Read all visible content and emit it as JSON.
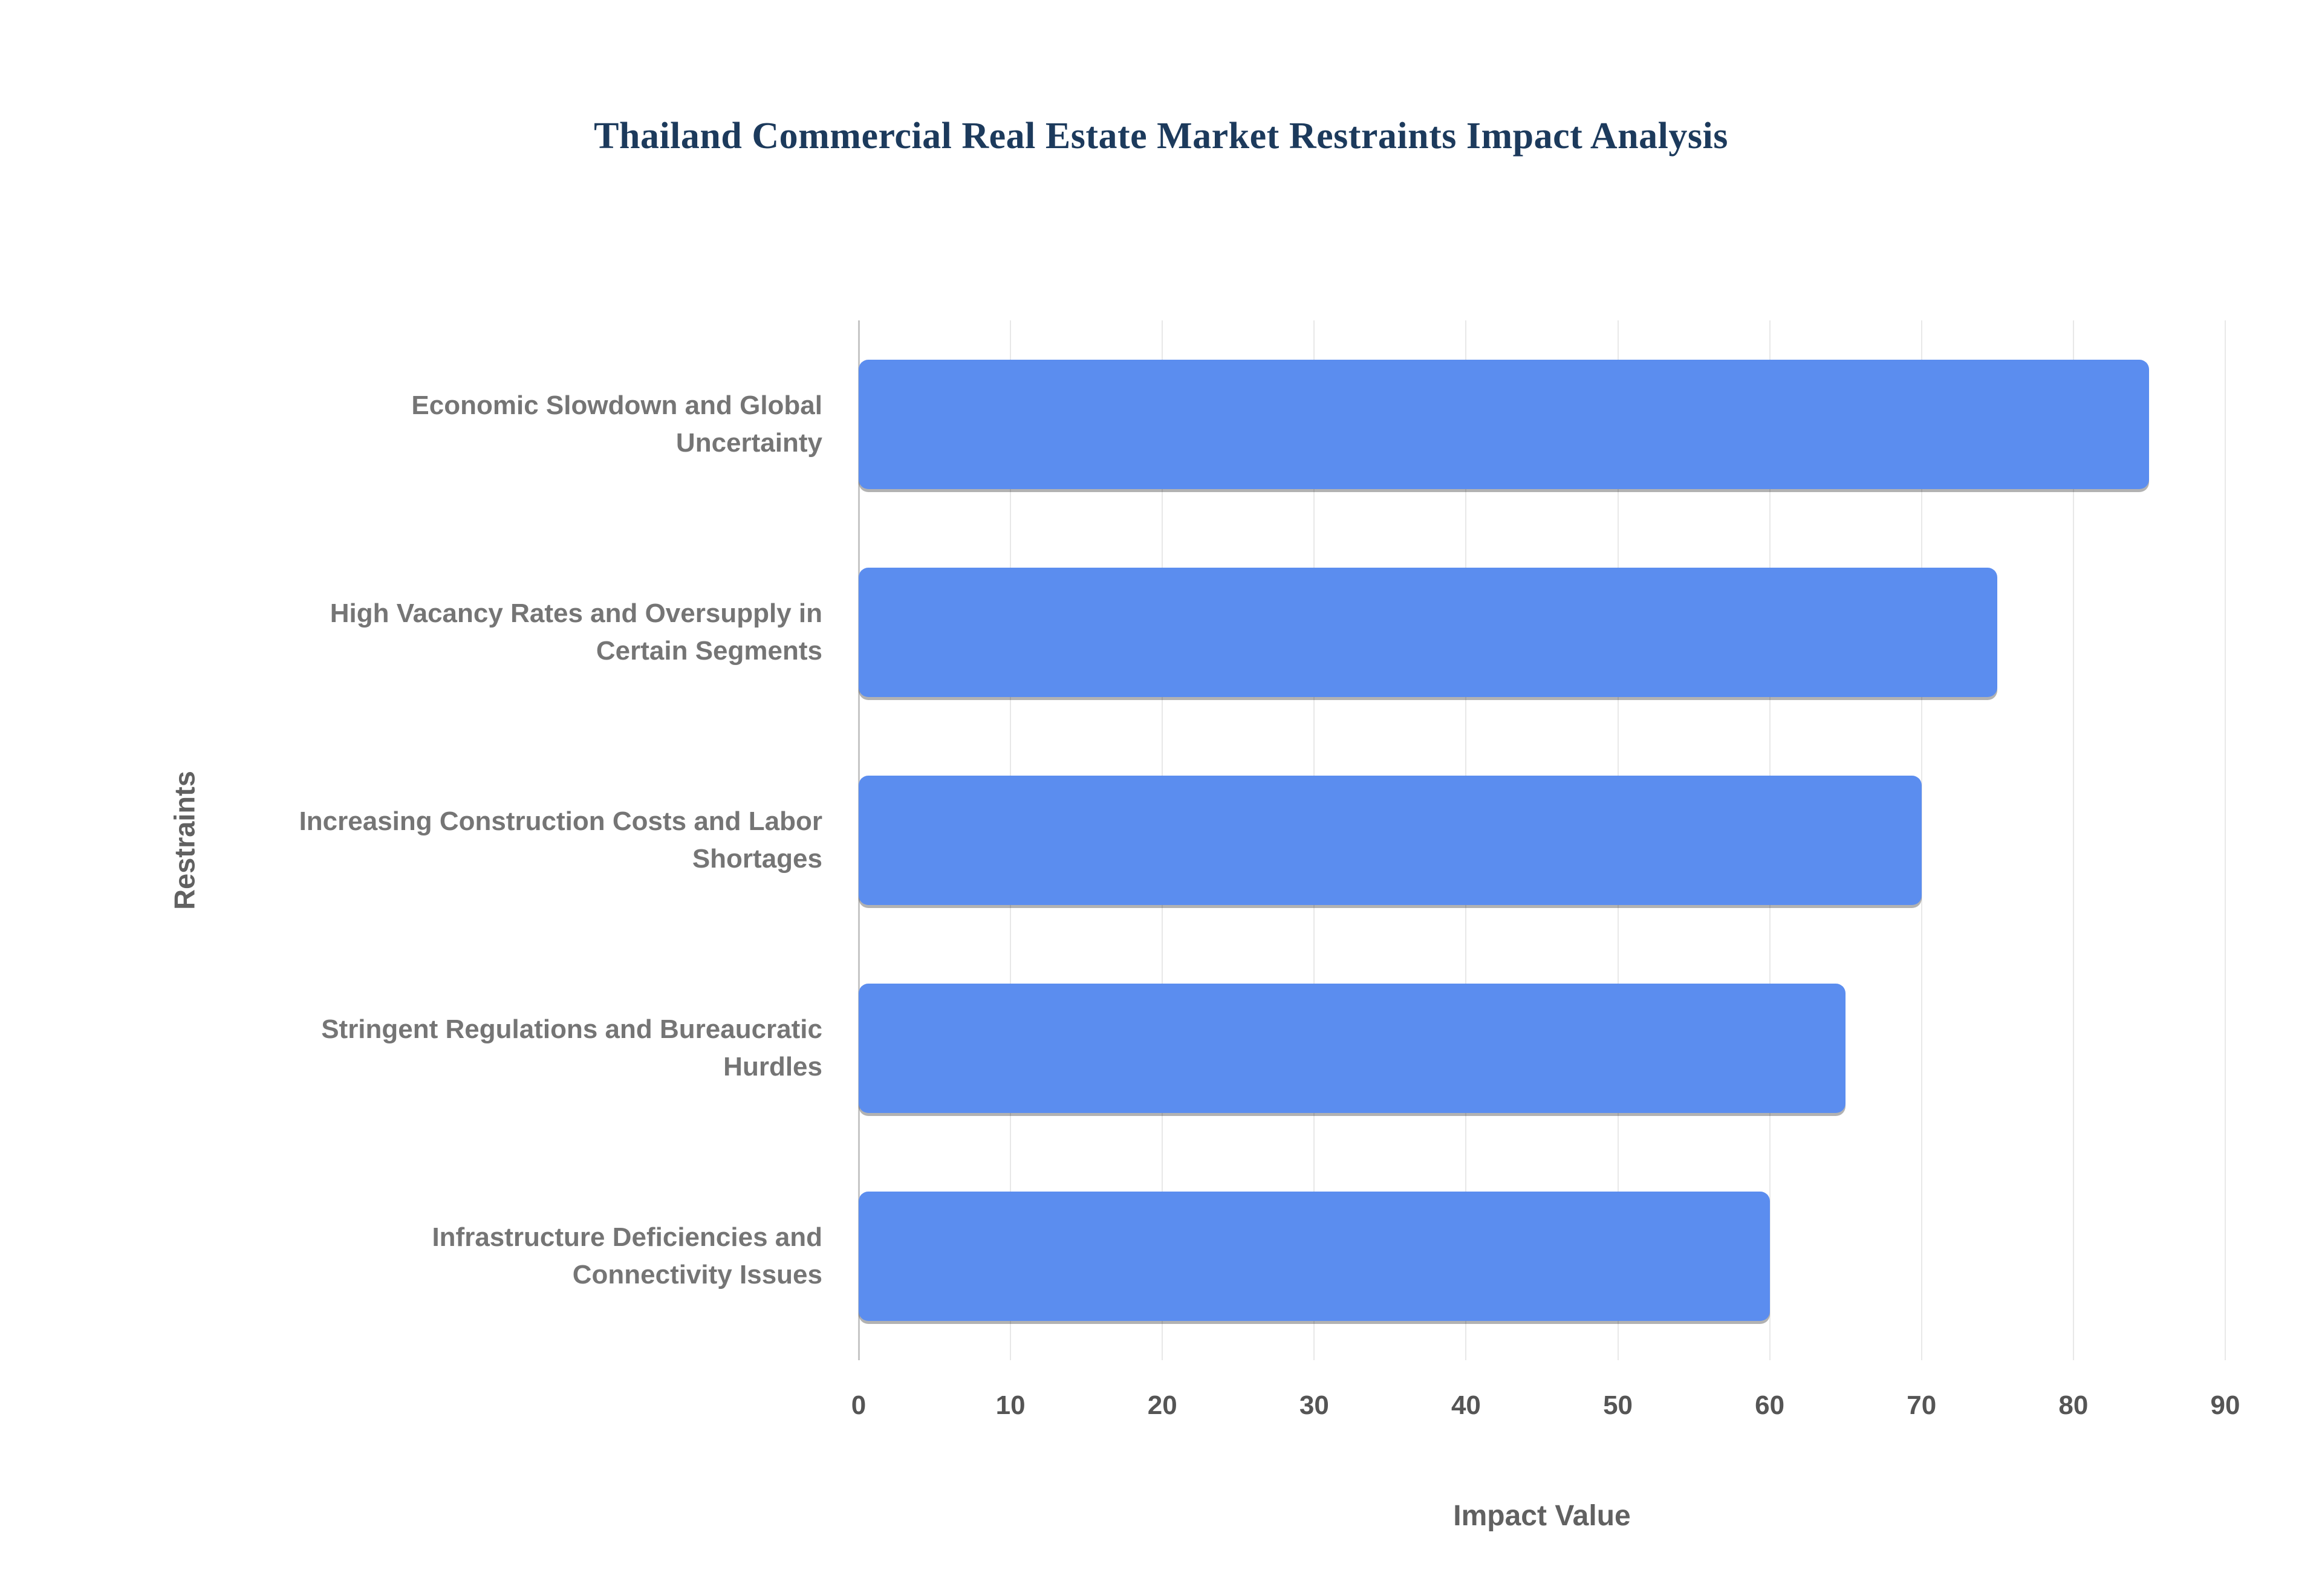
{
  "title": "Thailand Commercial Real Estate Market Restraints Impact Analysis",
  "chart_data": {
    "type": "bar",
    "orientation": "horizontal",
    "title": "Thailand Commercial Real Estate Market Restraints Impact Analysis",
    "categories": [
      "Economic Slowdown and Global Uncertainty",
      "High Vacancy Rates and Oversupply in Certain Segments",
      "Increasing Construction Costs and Labor Shortages",
      "Stringent Regulations and Bureaucratic Hurdles",
      "Infrastructure Deficiencies and Connectivity Issues"
    ],
    "values": [
      85,
      75,
      70,
      65,
      60
    ],
    "xlabel": "Impact Value",
    "ylabel": "Restraints",
    "xlim": [
      0,
      90
    ],
    "xticks": [
      0,
      10,
      20,
      30,
      40,
      50,
      60,
      70,
      80,
      90
    ],
    "bar_color": "#5b8def",
    "grid": true,
    "legend_position": "none"
  }
}
